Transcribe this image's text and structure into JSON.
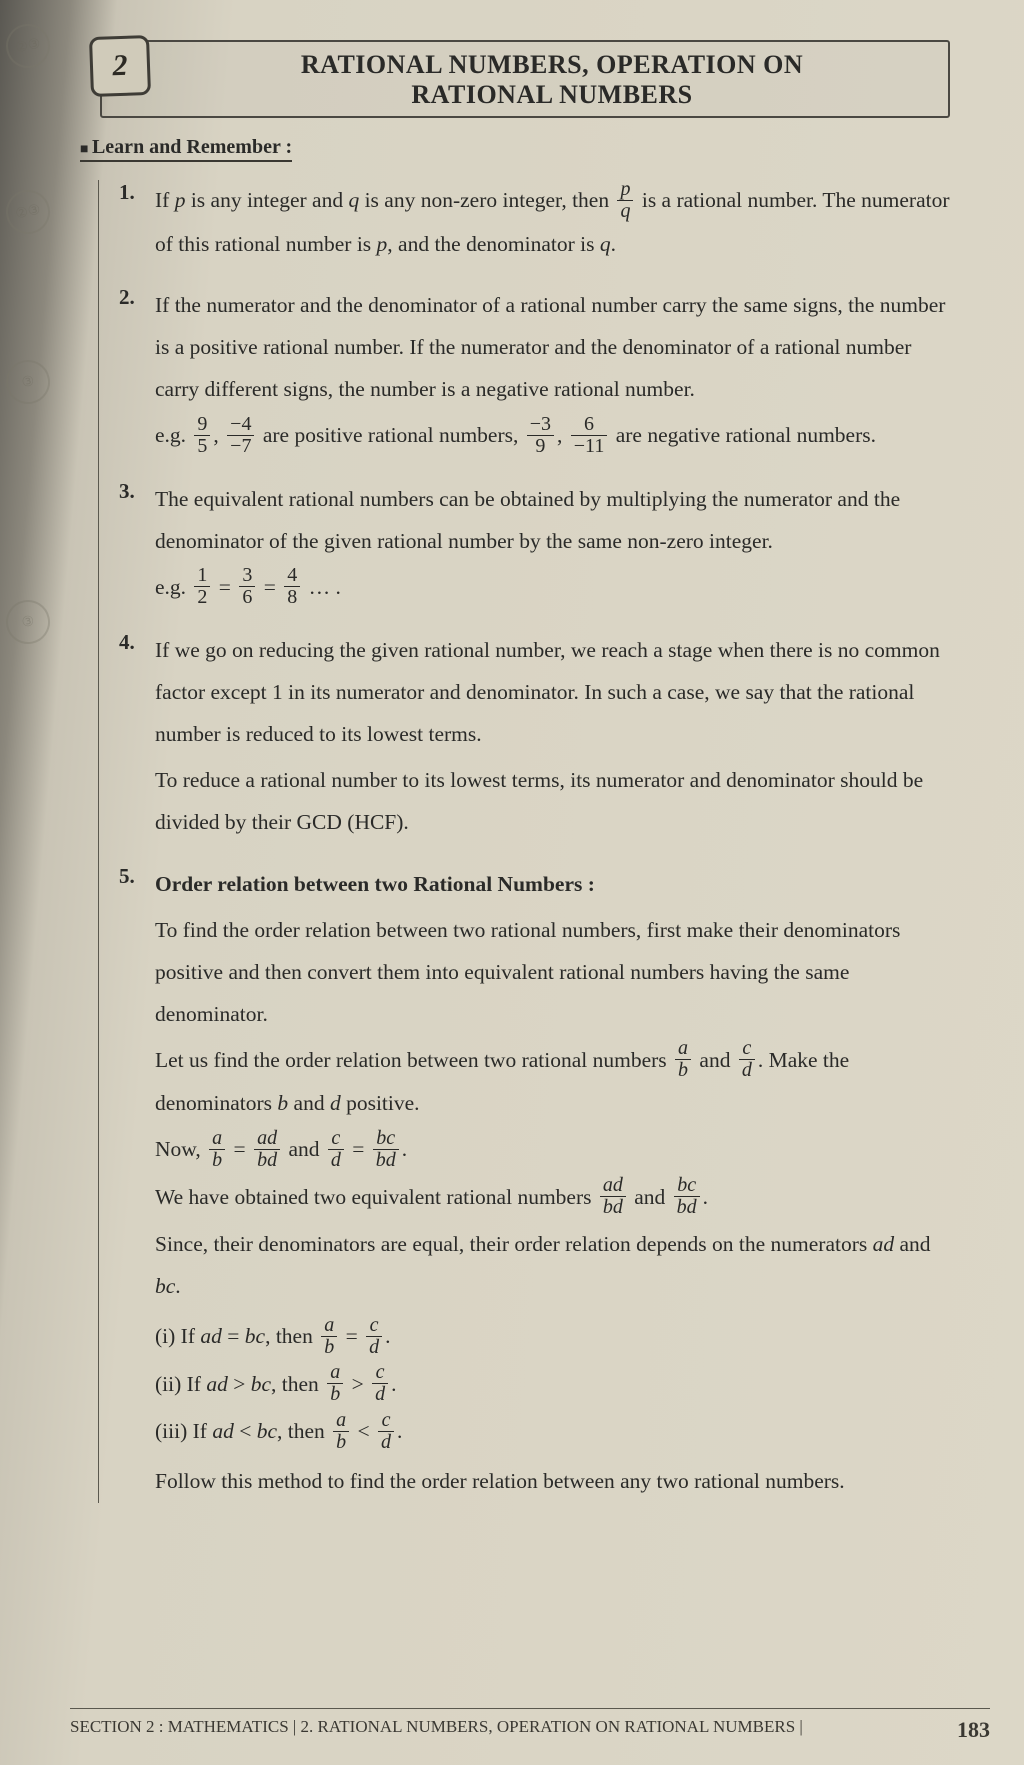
{
  "header": {
    "chapter_number": "2",
    "title_line1": "RATIONAL NUMBERS, OPERATION ON",
    "title_line2": "RATIONAL NUMBERS"
  },
  "learn_label": "Learn and Remember :",
  "items": [
    {
      "num": "1.",
      "paragraphs": [
        "If <span class='ital'>p</span> is any integer and <span class='ital'>q</span> is any non-zero integer, then <span class='frac'><span class='n ital'>p</span><span class='d ital'>q</span></span> is a rational number. The numerator of this rational number is <span class='ital'>p</span>, and the denominator is <span class='ital'>q</span>."
      ]
    },
    {
      "num": "2.",
      "paragraphs": [
        "If the numerator and the denominator of a rational number carry the same signs, the number is a positive rational number. If the numerator and the denominator of a rational number carry different signs, the number is a negative rational number.",
        "<span class='eg'>e.g. <span class='frac'><span class='n'>9</span><span class='d'>5</span></span>, <span class='frac'><span class='n'>−4</span><span class='d'>−7</span></span> are positive rational numbers, <span class='frac'><span class='n'>−3</span><span class='d'>9</span></span>, <span class='frac'><span class='n'>6</span><span class='d'>−11</span></span> are negative rational numbers.</span>"
      ]
    },
    {
      "num": "3.",
      "paragraphs": [
        "The equivalent rational numbers can be obtained by multiplying the numerator and the denominator of the given rational number by the same non-zero integer.",
        "<span class='eg'>e.g. <span class='frac'><span class='n'>1</span><span class='d'>2</span></span> = <span class='frac'><span class='n'>3</span><span class='d'>6</span></span> = <span class='frac'><span class='n'>4</span><span class='d'>8</span></span> … .</span>"
      ]
    },
    {
      "num": "4.",
      "paragraphs": [
        "If we go on reducing the given rational number, we reach a stage when there is no common factor except 1 in its numerator and denominator. In such a case, we say that the rational number is reduced to its lowest terms.",
        "To reduce a rational number to its lowest terms, its numerator and denominator should be divided by their GCD (HCF)."
      ]
    },
    {
      "num": "5.",
      "paragraphs": [
        "<span class='h'>Order relation between two Rational Numbers :</span>",
        "To find the order relation between two rational numbers, first make their denominators positive and then convert them into equivalent rational numbers having the same denominator.",
        "Let us find the order relation between two rational numbers <span class='frac'><span class='n ital'>a</span><span class='d ital'>b</span></span> and <span class='frac'><span class='n ital'>c</span><span class='d ital'>d</span></span>. Make the denominators <span class='ital'>b</span> and <span class='ital'>d</span> positive.",
        "Now, <span class='frac'><span class='n ital'>a</span><span class='d ital'>b</span></span> = <span class='frac'><span class='n ital'>ad</span><span class='d ital'>bd</span></span> and <span class='frac'><span class='n ital'>c</span><span class='d ital'>d</span></span> = <span class='frac'><span class='n ital'>bc</span><span class='d ital'>bd</span></span>.",
        "We have obtained two equivalent rational numbers <span class='frac'><span class='n ital'>ad</span><span class='d ital'>bd</span></span> and <span class='frac'><span class='n ital'>bc</span><span class='d ital'>bd</span></span>.",
        "Since, their denominators are equal, their order relation depends on the numerators <span class='ital'>ad</span> and <span class='ital'>bc</span>."
      ],
      "sublist": [
        "(i) If <span class='ital'>ad</span> = <span class='ital'>bc</span>, then <span class='frac'><span class='n ital'>a</span><span class='d ital'>b</span></span> = <span class='frac'><span class='n ital'>c</span><span class='d ital'>d</span></span>.",
        "(ii) If <span class='ital'>ad</span> &gt; <span class='ital'>bc</span>, then <span class='frac'><span class='n ital'>a</span><span class='d ital'>b</span></span> &gt; <span class='frac'><span class='n ital'>c</span><span class='d ital'>d</span></span>.",
        "(iii) If <span class='ital'>ad</span> &lt; <span class='ital'>bc</span>, then <span class='frac'><span class='n ital'>a</span><span class='d ital'>b</span></span> &lt; <span class='frac'><span class='n ital'>c</span><span class='d ital'>d</span></span>."
      ],
      "follow": "Follow this method to find the order relation between any two rational numbers."
    }
  ],
  "footer": {
    "section": "SECTION 2 : MATHEMATICS | 2. RATIONAL NUMBERS, OPERATION ON RATIONAL NUMBERS |",
    "page": "183"
  }
}
